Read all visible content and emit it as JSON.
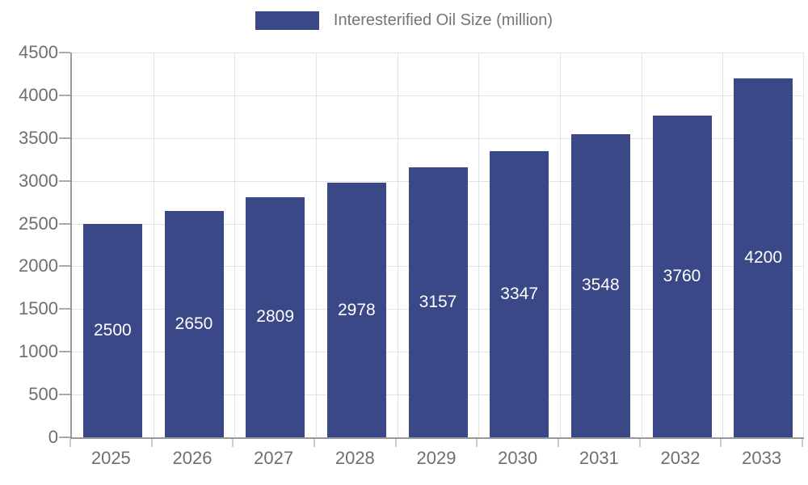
{
  "legend": {
    "label": "Interesterified Oil Size (million)"
  },
  "chart_data": {
    "type": "bar",
    "title": "Interesterified Oil Size (million)",
    "categories": [
      "2025",
      "2026",
      "2027",
      "2028",
      "2029",
      "2030",
      "2031",
      "2032",
      "2033"
    ],
    "values": [
      2500,
      2650,
      2809,
      2978,
      3157,
      3347,
      3548,
      3760,
      4200
    ],
    "series": [
      {
        "name": "Interesterified Oil Size (million)",
        "values": [
          2500,
          2650,
          2809,
          2978,
          3157,
          3347,
          3548,
          3760,
          4200
        ]
      }
    ],
    "xlabel": "",
    "ylabel": "",
    "ylim": [
      0,
      4500
    ],
    "yticks": [
      0,
      500,
      1000,
      1500,
      2000,
      2500,
      3000,
      3500,
      4000,
      4500
    ],
    "grid": true,
    "legend_position": "top-center",
    "value_labels": "inside-center",
    "colors": {
      "bar": "#3A4887",
      "bar_value_text": "#ffffff",
      "axis_line": "#999999",
      "grid_line": "#e2e2e6",
      "y_tick_mark": "#aaaaaa",
      "x_tick_mark": "#cccccc",
      "tick_label_text": "#6e6e73",
      "legend_text": "#757575"
    }
  }
}
